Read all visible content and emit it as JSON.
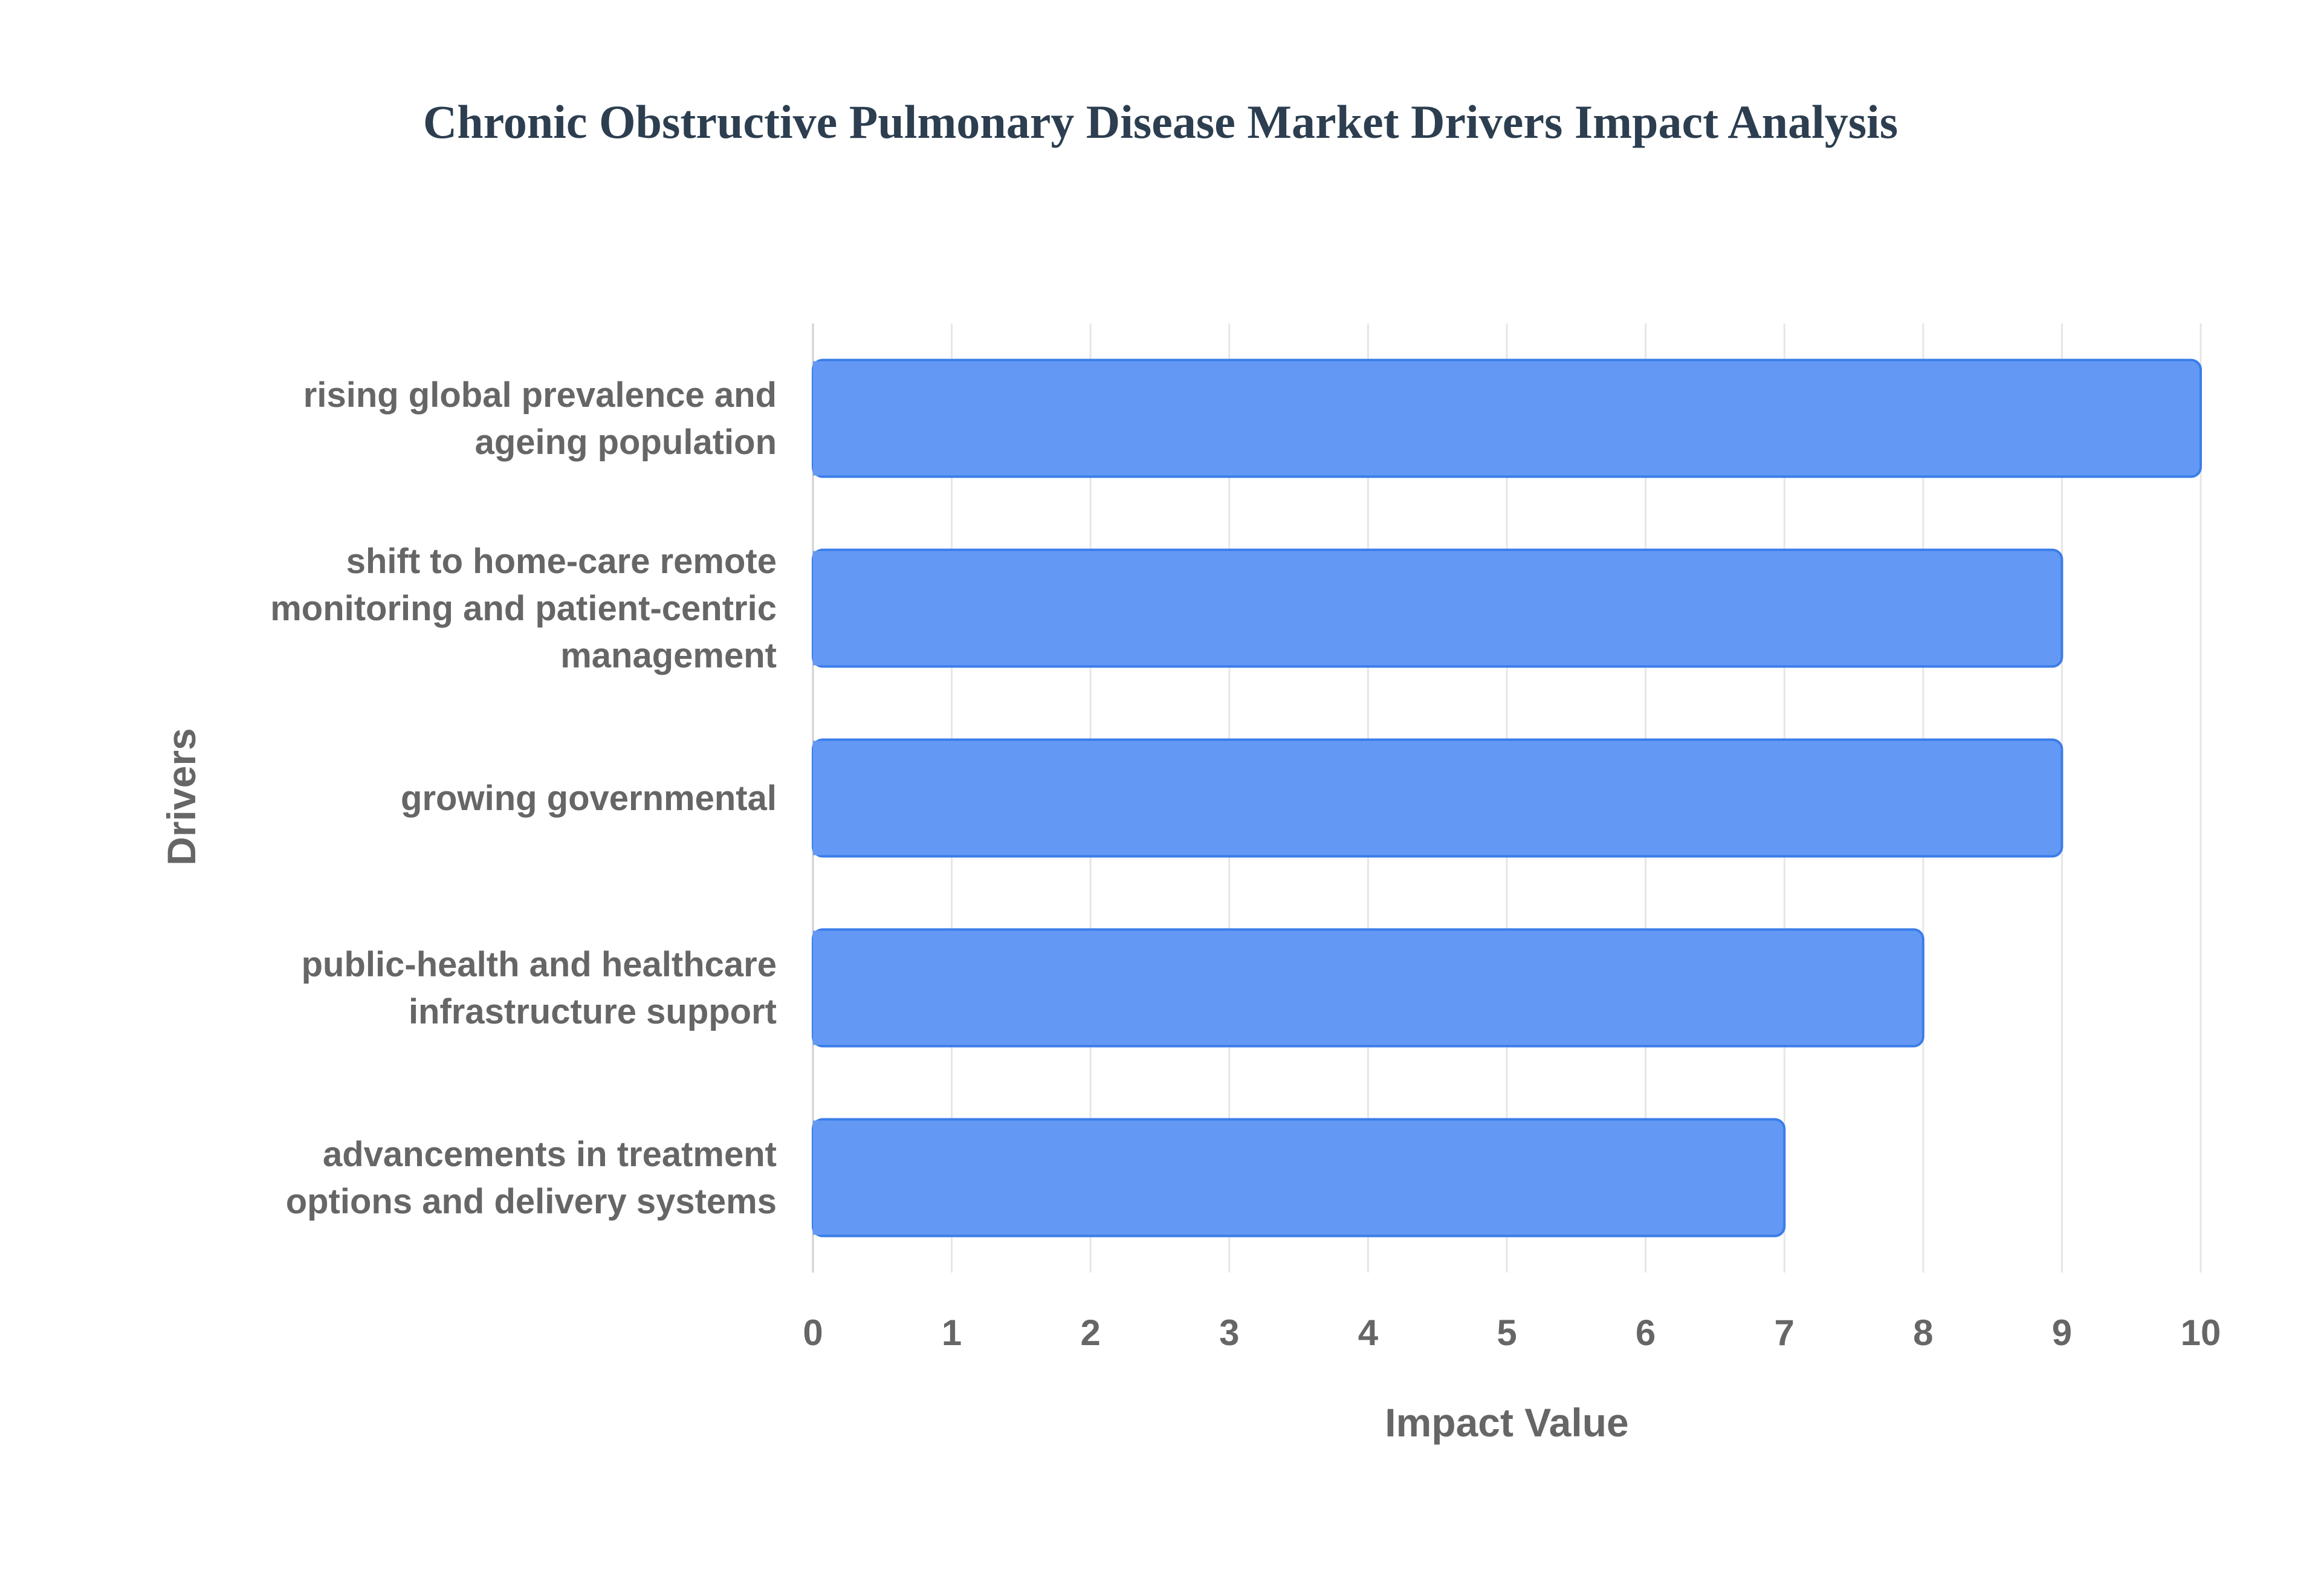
{
  "chart_data": {
    "type": "bar",
    "orientation": "horizontal",
    "title": "Chronic Obstructive Pulmonary Disease Market Drivers Impact Analysis",
    "xlabel": "Impact Value",
    "ylabel": "Drivers",
    "categories": [
      [
        "rising global prevalence and",
        "ageing population"
      ],
      [
        "shift to home-care remote",
        "monitoring and patient-centric",
        "management"
      ],
      [
        "growing governmental"
      ],
      [
        "public-health and healthcare",
        "infrastructure support"
      ],
      [
        "advancements in treatment",
        "options and delivery systems"
      ]
    ],
    "values": [
      10,
      9,
      9,
      8,
      7
    ],
    "xlim": [
      0,
      10
    ],
    "xticks": [
      "0",
      "1",
      "2",
      "3",
      "4",
      "5",
      "6",
      "7",
      "8",
      "9",
      "10"
    ],
    "grid": true,
    "legend": false
  },
  "colors": {
    "bar_fill": "#6399f5",
    "bar_stroke": "#3a7de8",
    "grid": "#e6e6e6",
    "axis_text": "#666666",
    "title": "#2c3e50"
  }
}
